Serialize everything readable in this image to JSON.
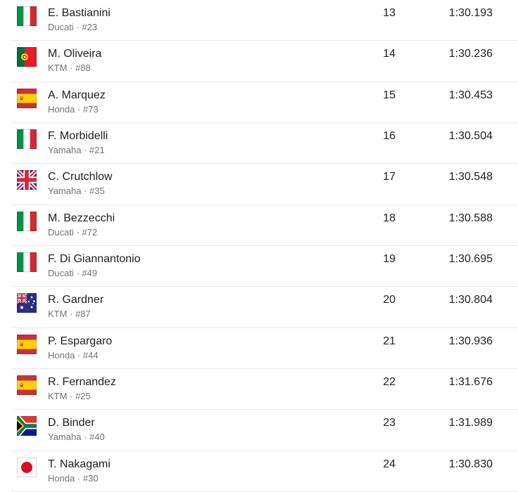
{
  "colors": {
    "background": "#ffffff",
    "divider": "#e8eaed",
    "text_primary": "#202124",
    "text_secondary": "#70757a"
  },
  "results": {
    "columns": [
      "flag",
      "rider",
      "team_number",
      "position",
      "time"
    ],
    "rows": [
      {
        "flag": "italy",
        "rider": "E. Bastianini",
        "team_number": "Ducati · #23",
        "position": "13",
        "time": "1:30.193"
      },
      {
        "flag": "portugal",
        "rider": "M. Oliveira",
        "team_number": "KTM · #88",
        "position": "14",
        "time": "1:30.236"
      },
      {
        "flag": "spain",
        "rider": "A. Marquez",
        "team_number": "Honda · #73",
        "position": "15",
        "time": "1:30.453"
      },
      {
        "flag": "italy",
        "rider": "F. Morbidelli",
        "team_number": "Yamaha · #21",
        "position": "16",
        "time": "1:30.504"
      },
      {
        "flag": "uk",
        "rider": "C. Crutchlow",
        "team_number": "Yamaha · #35",
        "position": "17",
        "time": "1:30.548"
      },
      {
        "flag": "italy",
        "rider": "M. Bezzecchi",
        "team_number": "Ducati · #72",
        "position": "18",
        "time": "1:30.588"
      },
      {
        "flag": "italy",
        "rider": "F. Di Giannantonio",
        "team_number": "Ducati · #49",
        "position": "19",
        "time": "1:30.695"
      },
      {
        "flag": "australia",
        "rider": "R. Gardner",
        "team_number": "KTM · #87",
        "position": "20",
        "time": "1:30.804"
      },
      {
        "flag": "spain",
        "rider": "P. Espargaro",
        "team_number": "Honda · #44",
        "position": "21",
        "time": "1:30.936"
      },
      {
        "flag": "spain",
        "rider": "R. Fernandez",
        "team_number": "KTM · #25",
        "position": "22",
        "time": "1:31.676"
      },
      {
        "flag": "south-africa",
        "rider": "D. Binder",
        "team_number": "Yamaha · #40",
        "position": "23",
        "time": "1:31.989"
      },
      {
        "flag": "japan",
        "rider": "T. Nakagami",
        "team_number": "Honda · #30",
        "position": "24",
        "time": "1:30.830"
      }
    ]
  }
}
